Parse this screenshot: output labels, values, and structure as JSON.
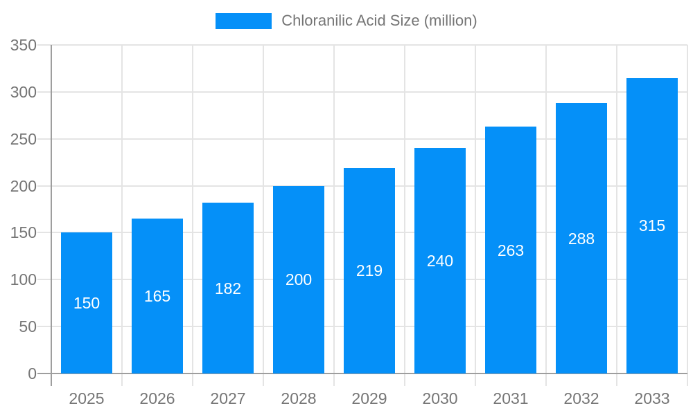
{
  "chart_data": {
    "type": "bar",
    "title": "",
    "legend_label": "Chloranilic Acid Size (million)",
    "legend_position": "top-center",
    "categories": [
      "2025",
      "2026",
      "2027",
      "2028",
      "2029",
      "2030",
      "2031",
      "2032",
      "2033"
    ],
    "series": [
      {
        "name": "Chloranilic Acid Size (million)",
        "values": [
          150,
          165,
          182,
          200,
          219,
          240,
          263,
          288,
          315
        ]
      }
    ],
    "xlabel": "",
    "ylabel": "",
    "ylim": [
      0,
      350
    ],
    "yticks": [
      0,
      50,
      100,
      150,
      200,
      250,
      300,
      350
    ],
    "grid": true,
    "value_labels": "inside-center",
    "colors": {
      "bar": "#0590F8",
      "axis": "#9E9E9E",
      "grid": "#E4E4E4",
      "tick_label": "#757575",
      "legend_label": "#757575",
      "value_label": "#FFFFFF",
      "background": "#FFFFFF"
    }
  }
}
